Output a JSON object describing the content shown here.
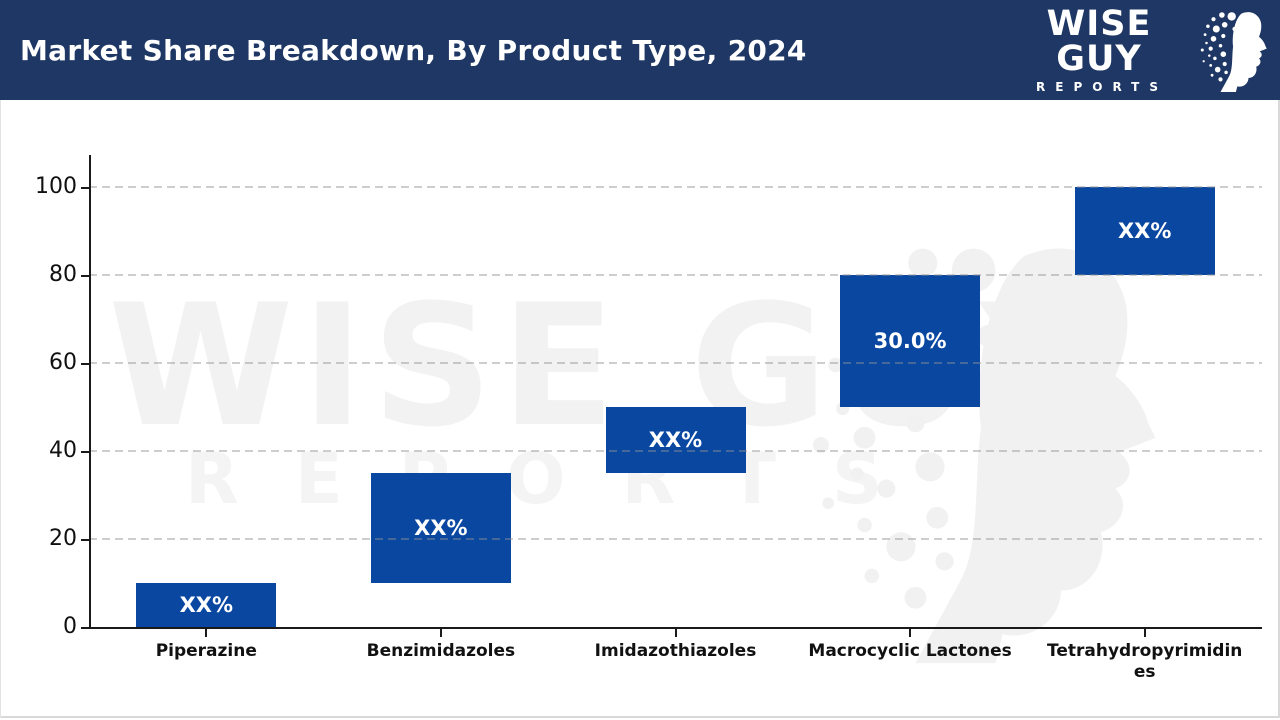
{
  "header": {
    "title": "Market Share Breakdown, By Product Type, 2024",
    "bg_color": "#1f3764",
    "logo": {
      "line1": "WISE GUY",
      "line2": "REPORTS"
    }
  },
  "watermark": {
    "line1": "WISE GUY",
    "line2": "REPORTS"
  },
  "chart_data": {
    "type": "bar",
    "subtype": "floating-waterfall",
    "title": "Market Share Breakdown, By Product Type, 2024",
    "categories": [
      "Piperazine",
      "Benzimidazoles",
      "Imidazothiazoles",
      "Macrocyclic Lactones",
      "Tetrahydropyrimidines"
    ],
    "segments": [
      {
        "category": "Piperazine",
        "start": 0,
        "end": 10,
        "label": "XX%"
      },
      {
        "category": "Benzimidazoles",
        "start": 10,
        "end": 35,
        "label": "XX%"
      },
      {
        "category": "Imidazothiazoles",
        "start": 35,
        "end": 50,
        "label": "XX%"
      },
      {
        "category": "Macrocyclic Lactones",
        "start": 50,
        "end": 80,
        "label": "30.0%"
      },
      {
        "category": "Tetrahydropyrimidines",
        "start": 80,
        "end": 100,
        "label": "XX%"
      }
    ],
    "values": [
      10,
      25,
      15,
      30,
      20
    ],
    "xlabel": "",
    "ylabel": "",
    "ylim": [
      0,
      105
    ],
    "yticks": [
      0,
      20,
      40,
      60,
      80,
      100
    ],
    "grid": "dashed-horizontal",
    "legend": "none",
    "bar_color": "#0a47a1",
    "bar_label_color": "#ffffff",
    "axis_color": "#1a1a1a"
  }
}
